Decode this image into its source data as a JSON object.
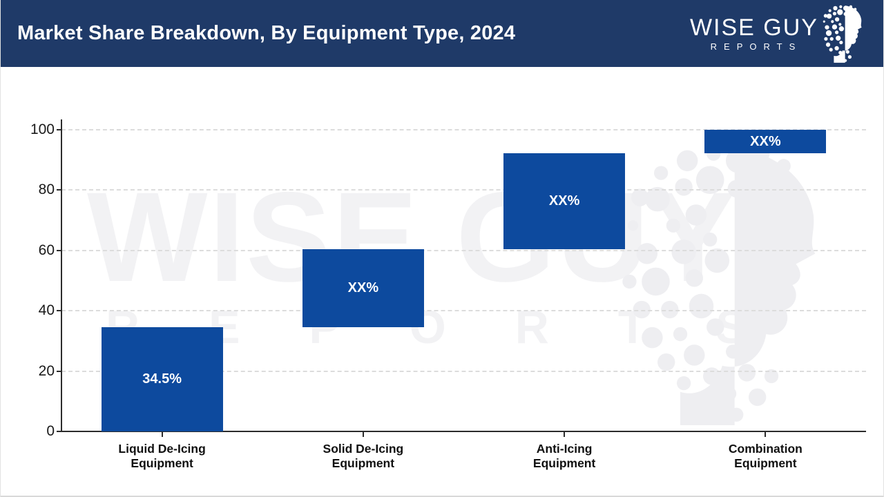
{
  "header": {
    "title": "Market Share Breakdown, By Equipment Type, 2024",
    "logo_line1": "WISE GUY",
    "logo_line2": "REPORTS"
  },
  "watermark": {
    "line1": "WISE GUY",
    "line2": "REPORTS"
  },
  "colors": {
    "header_bg": "#1f3a68",
    "bar": "#0d4a9e",
    "bar_label": "#ffffff",
    "gridline": "#dcdcdc",
    "axis": "#2b2b2b"
  },
  "chart_data": {
    "type": "bar",
    "subtype": "waterfall",
    "title": "Market Share Breakdown, By Equipment Type, 2024",
    "xlabel": "",
    "ylabel": "",
    "ylim": [
      0,
      100
    ],
    "yticks": [
      0,
      20,
      40,
      60,
      80,
      100
    ],
    "grid": "horizontal-dashed",
    "legend": "none",
    "categories": [
      {
        "name": "Liquid De-Icing Equipment",
        "lines": [
          "Liquid De-Icing",
          "Equipment"
        ]
      },
      {
        "name": "Solid De-Icing Equipment",
        "lines": [
          "Solid De-Icing",
          "Equipment"
        ]
      },
      {
        "name": "Anti-Icing Equipment",
        "lines": [
          "Anti-Icing",
          "Equipment"
        ]
      },
      {
        "name": "Combination Equipment",
        "lines": [
          "Combination",
          "Equipment"
        ]
      }
    ],
    "segments": [
      {
        "category": "Liquid De-Icing Equipment",
        "start": 0,
        "end": 34.5,
        "label": "34.5%"
      },
      {
        "category": "Solid De-Icing Equipment",
        "start": 34.5,
        "end": 60.5,
        "label": "XX%"
      },
      {
        "category": "Anti-Icing Equipment",
        "start": 60.5,
        "end": 92.2,
        "label": "XX%"
      },
      {
        "category": "Combination Equipment",
        "start": 92.2,
        "end": 100,
        "label": "XX%"
      }
    ]
  }
}
